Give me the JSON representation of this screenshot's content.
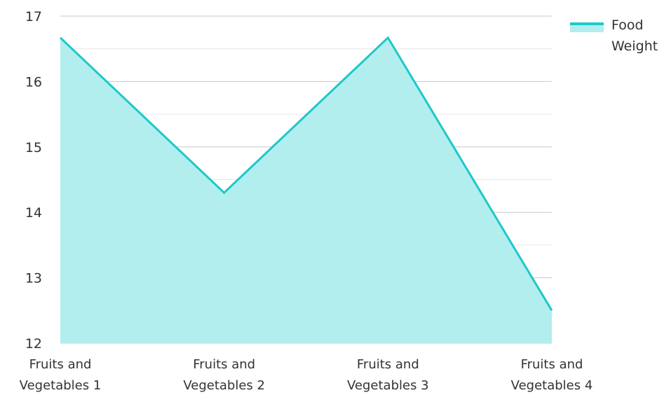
{
  "chart_data": {
    "type": "area",
    "title": "",
    "xlabel": "",
    "ylabel": "",
    "categories": [
      [
        "Fruits and",
        "Vegetables 1"
      ],
      [
        "Fruits and",
        "Vegetables 2"
      ],
      [
        "Fruits and",
        "Vegetables 3"
      ],
      [
        "Fruits and",
        "Vegetables 4"
      ]
    ],
    "series": [
      {
        "name": [
          "Food",
          "Weight"
        ],
        "values": [
          16.67,
          14.3,
          16.67,
          12.5
        ]
      }
    ],
    "ylim": [
      12,
      17
    ],
    "yticks": [
      "12",
      "13",
      "14",
      "15",
      "16",
      "17"
    ],
    "grid": true,
    "legend_position": "top-right",
    "colors": {
      "line": "#1ec8c8",
      "fill": "#b2eeee",
      "grid_major": "#c8c8c8",
      "grid_minor": "#e6e6e6",
      "text": "#333333"
    }
  }
}
